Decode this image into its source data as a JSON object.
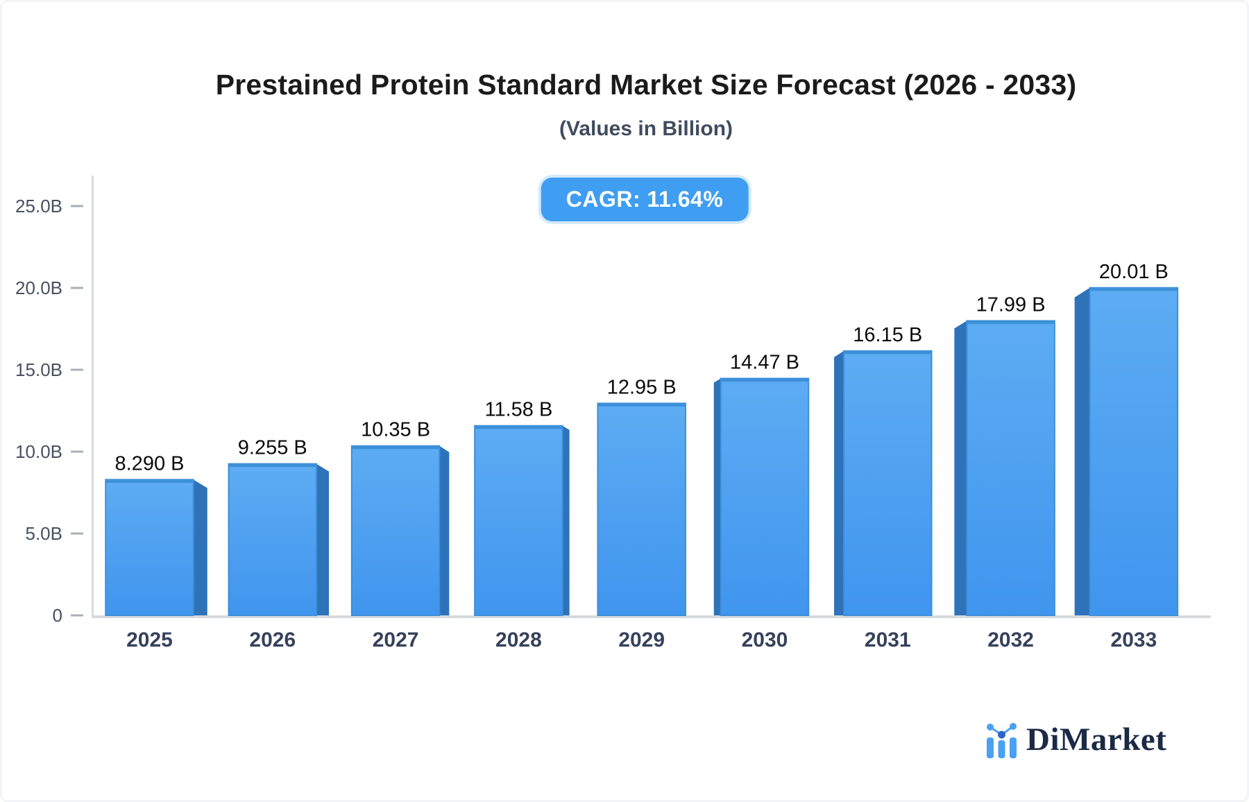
{
  "header": {
    "title": "Prestained Protein Standard Market Size Forecast (2026 - 2033)",
    "subtitle": "(Values in Billion)",
    "cagr_label": "CAGR: 11.64%"
  },
  "chart_data": {
    "type": "bar",
    "title": "Prestained Protein Standard Market Size Forecast (2026 - 2033)",
    "subtitle": "(Values in Billion)",
    "cagr_percent": 11.64,
    "categories": [
      "2025",
      "2026",
      "2027",
      "2028",
      "2029",
      "2030",
      "2031",
      "2032",
      "2033"
    ],
    "values": [
      8.29,
      9.255,
      10.35,
      11.58,
      12.95,
      14.47,
      16.15,
      17.99,
      20.01
    ],
    "bar_labels": [
      "8.290 B",
      "9.255 B",
      "10.35 B",
      "11.58 B",
      "12.95 B",
      "14.47 B",
      "16.15 B",
      "17.99 B",
      "20.01 B"
    ],
    "xlabel": "",
    "ylabel": "",
    "ylim": [
      0,
      25
    ],
    "ytick_interval": 5,
    "ytick_labels": [
      "0",
      "5.0B",
      "10.0B",
      "15.0B",
      "20.0B",
      "25.0B"
    ],
    "grid": false,
    "legend": false,
    "colors": {
      "bar_face_top": "#5dacf3",
      "bar_face_bottom": "#4095ee",
      "bar_side": "#2e73b9",
      "bar_edge": "#3c8fd9",
      "axis_line": "#d7dadd",
      "tick": "#a8afb8",
      "tick_label": "#46515f",
      "x_label": "#36425b",
      "value_label": "#0b0b0b"
    }
  },
  "footer": {
    "brand": "DiMarket"
  }
}
